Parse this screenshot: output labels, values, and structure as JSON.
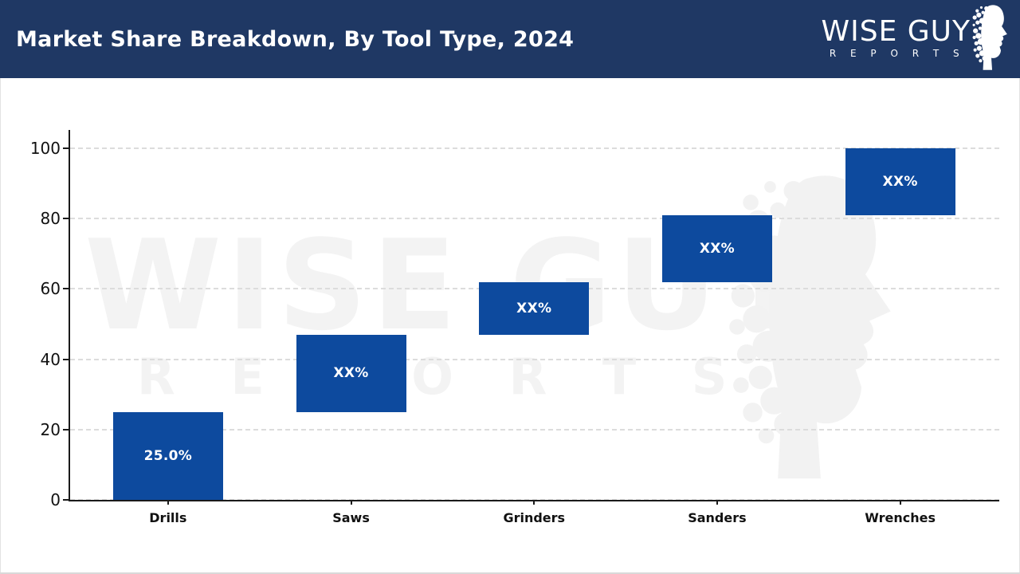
{
  "header": {
    "title": "Market Share Breakdown, By Tool Type, 2024",
    "logo": {
      "line1": "WISE GUY",
      "line2": "R E P O R T S"
    }
  },
  "watermark": {
    "line1": "WISE GUY",
    "line2": "R E P O R T S"
  },
  "chart_data": {
    "type": "bar",
    "subtype": "waterfall",
    "title": "Market Share Breakdown, By Tool Type, 2024",
    "xlabel": "",
    "ylabel": "",
    "categories": [
      "Drills",
      "Saws",
      "Grinders",
      "Sanders",
      "Wrenches"
    ],
    "segments": [
      {
        "category": "Drills",
        "start": 0,
        "end": 25,
        "label": "25.0%"
      },
      {
        "category": "Saws",
        "start": 25,
        "end": 47,
        "label": "XX%"
      },
      {
        "category": "Grinders",
        "start": 47,
        "end": 62,
        "label": "XX%"
      },
      {
        "category": "Sanders",
        "start": 62,
        "end": 81,
        "label": "XX%"
      },
      {
        "category": "Wrenches",
        "start": 81,
        "end": 100,
        "label": "XX%"
      }
    ],
    "y_ticks": [
      0,
      20,
      40,
      60,
      80,
      100
    ],
    "ylim": [
      0,
      105
    ],
    "grid": "horizontal-dashed",
    "legend": "none",
    "bar_color": "#0d4a9e"
  },
  "colors": {
    "header_bg": "#1f3864",
    "bar": "#0d4a9e",
    "gridline": "#dcdcdc",
    "watermark": "#f3f3f3",
    "axis": "#1a1a1a"
  }
}
